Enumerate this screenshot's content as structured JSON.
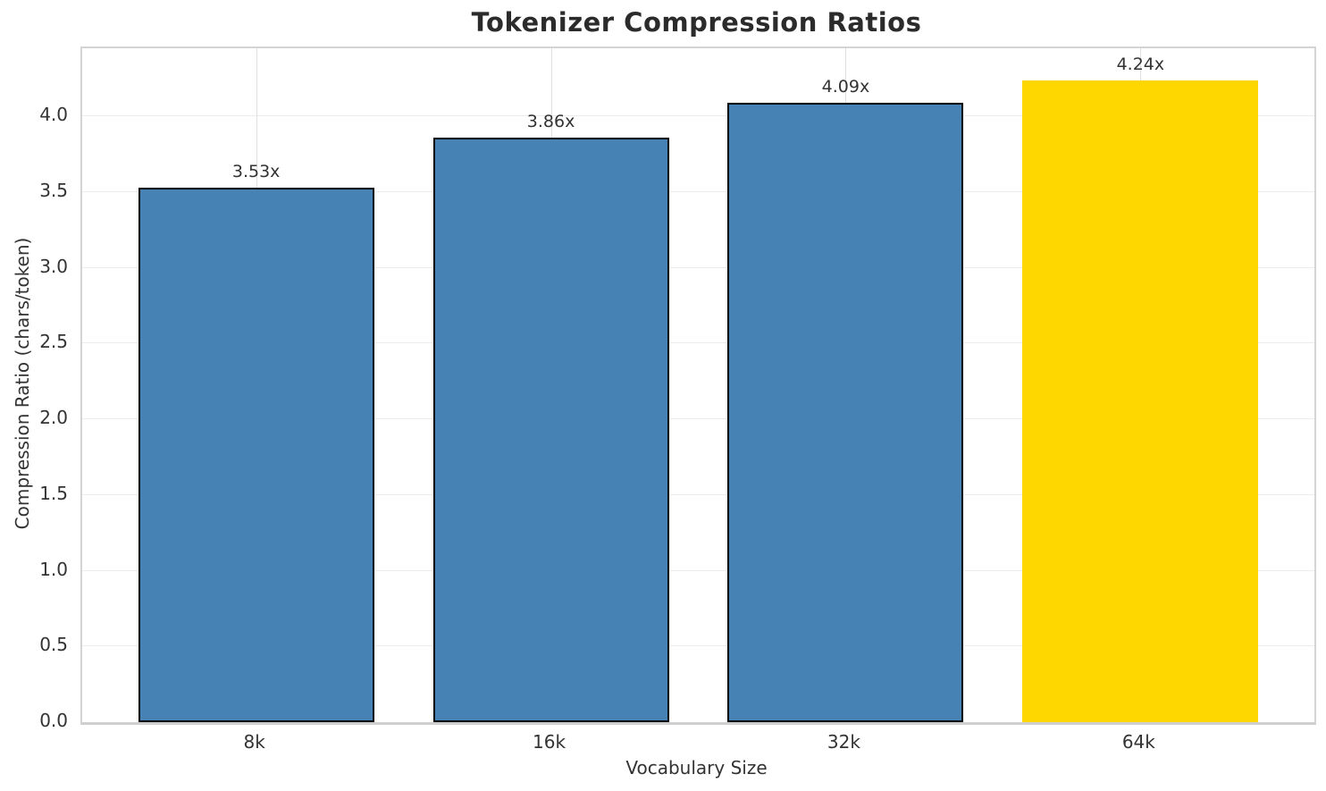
{
  "chart_data": {
    "type": "bar",
    "title": "Tokenizer Compression Ratios",
    "xlabel": "Vocabulary Size",
    "ylabel": "Compression Ratio (chars/token)",
    "categories": [
      "8k",
      "16k",
      "32k",
      "64k"
    ],
    "values": [
      3.53,
      3.86,
      4.09,
      4.24
    ],
    "bar_labels": [
      "3.53x",
      "3.86x",
      "4.09x",
      "4.24x"
    ],
    "bar_colors": [
      "#4682B4",
      "#4682B4",
      "#4682B4",
      "#FFD700"
    ],
    "bar_edge_colors": [
      "#000000",
      "#000000",
      "#000000",
      "none"
    ],
    "yticks": [
      0.0,
      0.5,
      1.0,
      1.5,
      2.0,
      2.5,
      3.0,
      3.5,
      4.0
    ],
    "ytick_labels": [
      "0.0",
      "0.5",
      "1.0",
      "1.5",
      "2.0",
      "2.5",
      "3.0",
      "3.5",
      "4.0"
    ],
    "ylim": [
      0,
      4.45
    ],
    "grid": true,
    "legend_position": "none"
  },
  "colors": {
    "bar_default": "#4682B4",
    "bar_highlight": "#FFD700",
    "bar_edge": "#000000",
    "title_text": "#2b2b2b",
    "tick_text": "#333333",
    "gridline": "#ececec",
    "spine": "#d4d4d4",
    "background": "#ffffff"
  }
}
